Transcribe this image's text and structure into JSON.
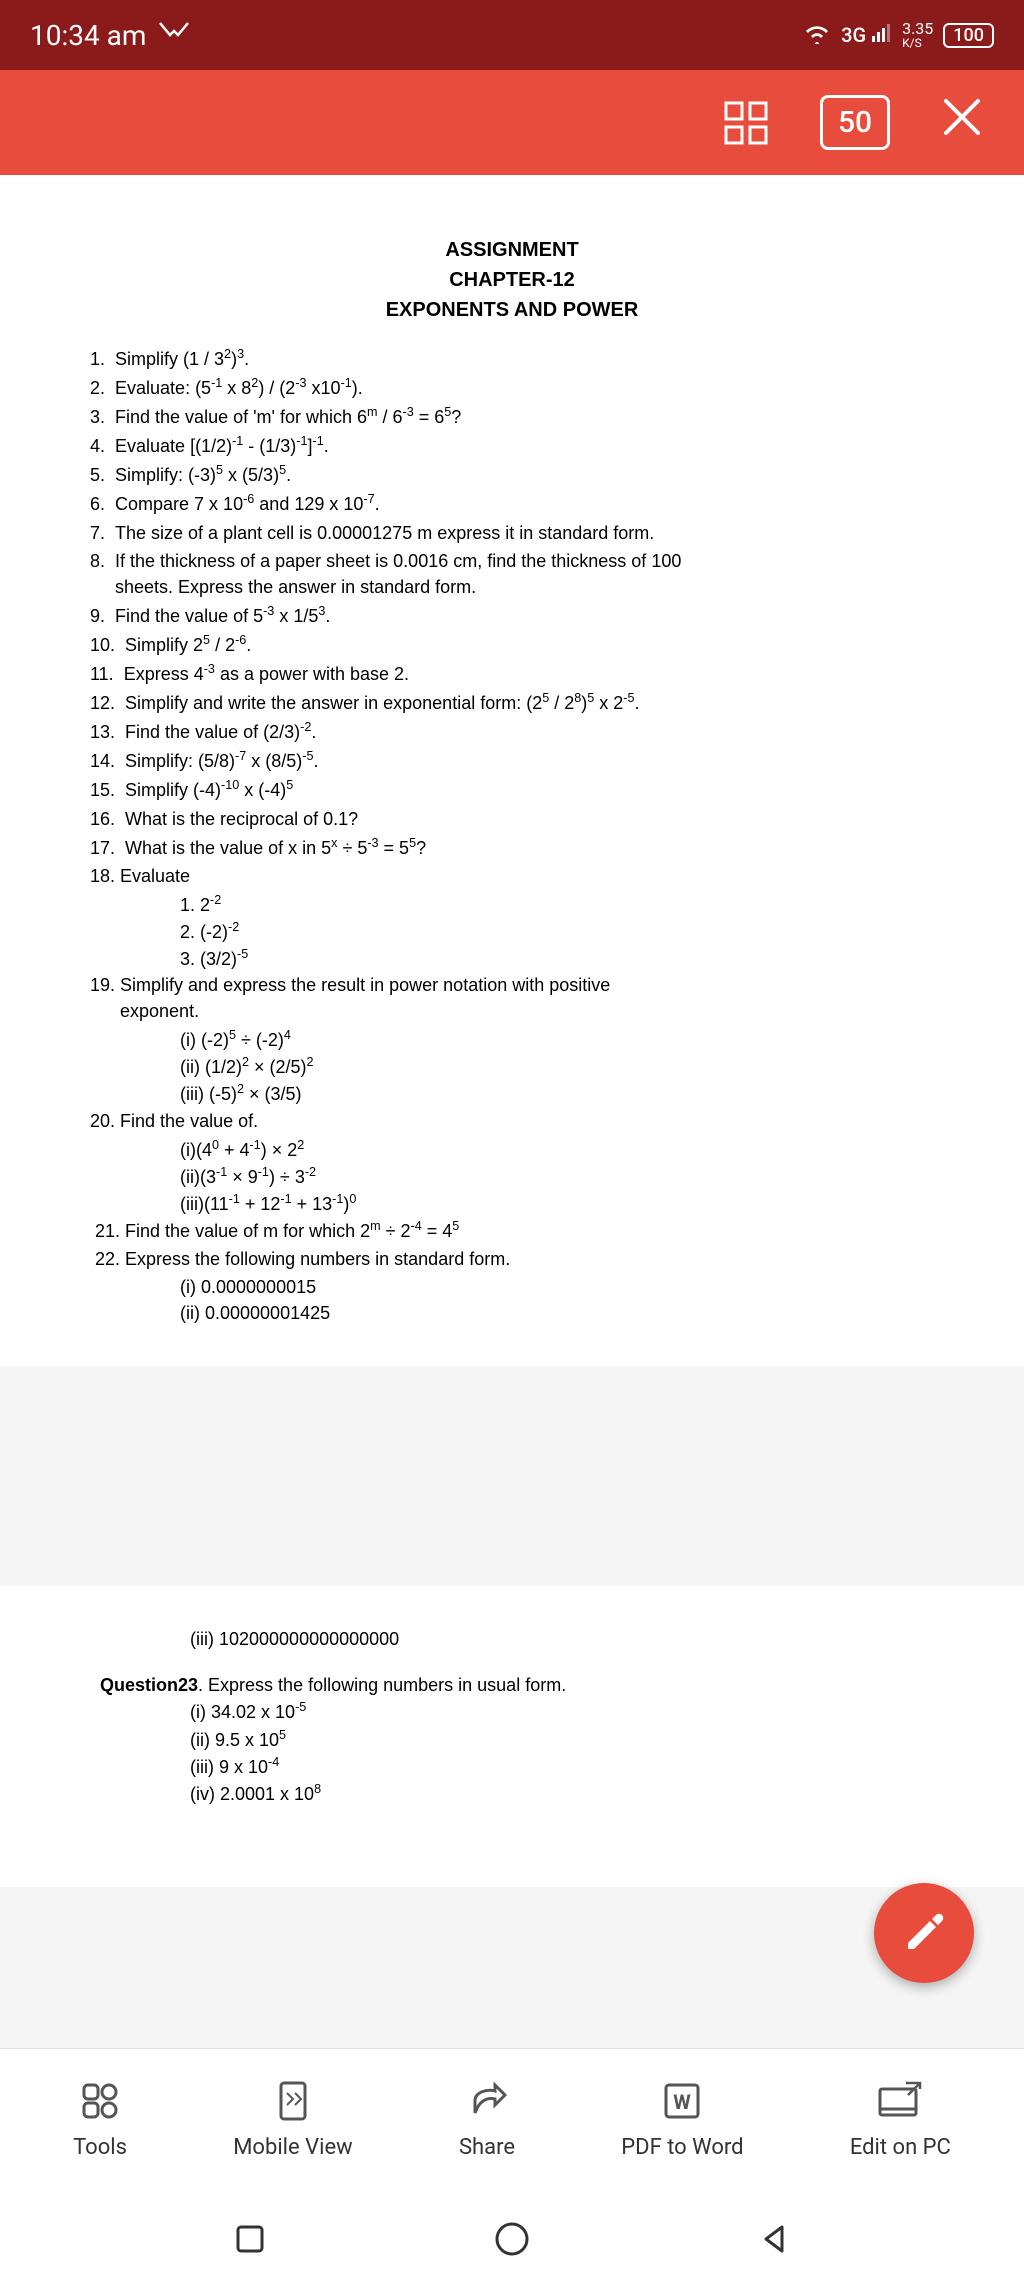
{
  "status": {
    "time": "10:34 am",
    "mail_icon": "M",
    "network": "3G",
    "speed": "3.35",
    "speed_unit": "K/S",
    "battery": "100"
  },
  "app_bar": {
    "page_badge": "50"
  },
  "document": {
    "title_line1": "ASSIGNMENT",
    "title_line2": "CHAPTER-12",
    "title_line3": "EXPONENTS AND POWER",
    "questions_html": "<ol><li>1.&nbsp;&nbsp;Simplify (1 / 3<sup>2</sup>)<sup>3</sup>.</li><li>2.&nbsp;&nbsp;Evaluate: (5<sup>-1</sup> x 8<sup>2</sup>) / (2<sup>-3</sup> x10<sup>-1</sup>).</li><li>3.&nbsp;&nbsp;Find the value of 'm' for which 6<sup>m</sup> / 6<sup>-3</sup> = 6<sup>5</sup>?</li><li>4.&nbsp;&nbsp;Evaluate [(1/2)<sup>-1</sup> - (1/3)<sup>-1</sup>]<sup>-1</sup>.</li><li>5.&nbsp;&nbsp;Simplify: (-3)<sup>5</sup> x (5/3)<sup>5</sup>.</li><li>6.&nbsp;&nbsp;Compare 7 x 10<sup>-6</sup> and 129 x 10<sup>-7</sup>.</li><li>7.&nbsp;&nbsp;The size of a plant cell is 0.00001275 m express it in standard form.</li><li>8.&nbsp;&nbsp;If the thickness of a paper sheet is 0.0016 cm, find the thickness of 100<br>&nbsp;&nbsp;&nbsp;&nbsp;&nbsp;sheets. Express the answer in standard form.</li><li>9.&nbsp;&nbsp;Find the value of 5<sup>-3</sup> x 1/5<sup>3</sup>.</li><li>10.&nbsp;&nbsp;Simplify 2<sup>5</sup> / 2<sup>-6</sup>.</li><li>11.&nbsp;&nbsp;Express 4<sup>-3</sup> as a power with base 2.</li><li>12.&nbsp;&nbsp;Simplify and write the answer in exponential form: (2<sup>5</sup> / 2<sup>8</sup>)<sup>5</sup> x 2<sup>-5</sup>.</li><li>13.&nbsp;&nbsp;Find the value of (2/3)<sup>-2</sup>.</li><li>14.&nbsp;&nbsp;Simplify: (5/8)<sup>-7</sup> x (8/5)<sup>-5</sup>.</li><li>15.&nbsp;&nbsp;Simplify (-4)<sup>-10</sup> x (-4)<sup>5</sup></li><li>16.&nbsp;&nbsp;What is the reciprocal of 0.1?</li><li>17.&nbsp;&nbsp;What is the value of x in 5<sup>x</sup> ÷ 5<sup>-3</sup> = 5<sup>5</sup>?</li><li>18. Evaluate</li></ol><div class='sub-items'>1. 2<sup>-2</sup><br>2. (-2)<sup>-2</sup><br>3. (3/2)<sup>-5</sup></div><ol><li>19. Simplify and express the result in power notation with positive<br>&nbsp;&nbsp;&nbsp;&nbsp;&nbsp;&nbsp;exponent.</li></ol><div class='sub-items'>(i) (-2)<sup>5</sup> ÷ (-2)<sup>4</sup><br>(ii) (1/2)<sup>2</sup> × (2/5)<sup>2</sup><br>(iii) (-5)<sup>2</sup> × (3/5)</div><ol><li>20. Find the value of.</li></ol><div class='sub-items'>(i)(4<sup>0</sup> + 4<sup>-1</sup>) × 2<sup>2</sup><br>(ii)(3<sup>-1</sup> × 9<sup>-1</sup>) ÷ 3<sup>-2</sup><br>(iii)(11<sup>-1</sup> + 12<sup>-1</sup> + 13<sup>-1</sup>)<sup>0</sup></div><ol><li>&nbsp;21. Find the value of m for which 2<sup>m</sup> ÷ 2<sup>-4</sup> = 4<sup>5</sup></li><li>&nbsp;22. Express the following numbers in standard form.</li></ol><div class='sub-items'>(i) 0.0000000015<br>(ii) 0.00000001425</div>",
    "section2_html": "<div style='padding-left:90px;margin-bottom:20px;'>(iii) 102000000000000000</div><div><b>Question23</b>. Express the following numbers in usual form.</div><div style='padding-left:90px;'>(i) 34.02 x 10<sup>-5</sup><br>(ii) 9.5 x 10<sup>5</sup><br>(iii) 9 x 10<sup>-4</sup><br>(iv) 2.0001 x 10<sup>8</sup></div>"
  },
  "toolbar": {
    "tools": "Tools",
    "mobile_view": "Mobile View",
    "share": "Share",
    "pdf_to_word": "PDF to Word",
    "edit_on_pc": "Edit on PC"
  },
  "colors": {
    "status_bg": "#8b1a1a",
    "app_bar_bg": "#e84c3d",
    "fab_bg": "#e84c3d"
  }
}
